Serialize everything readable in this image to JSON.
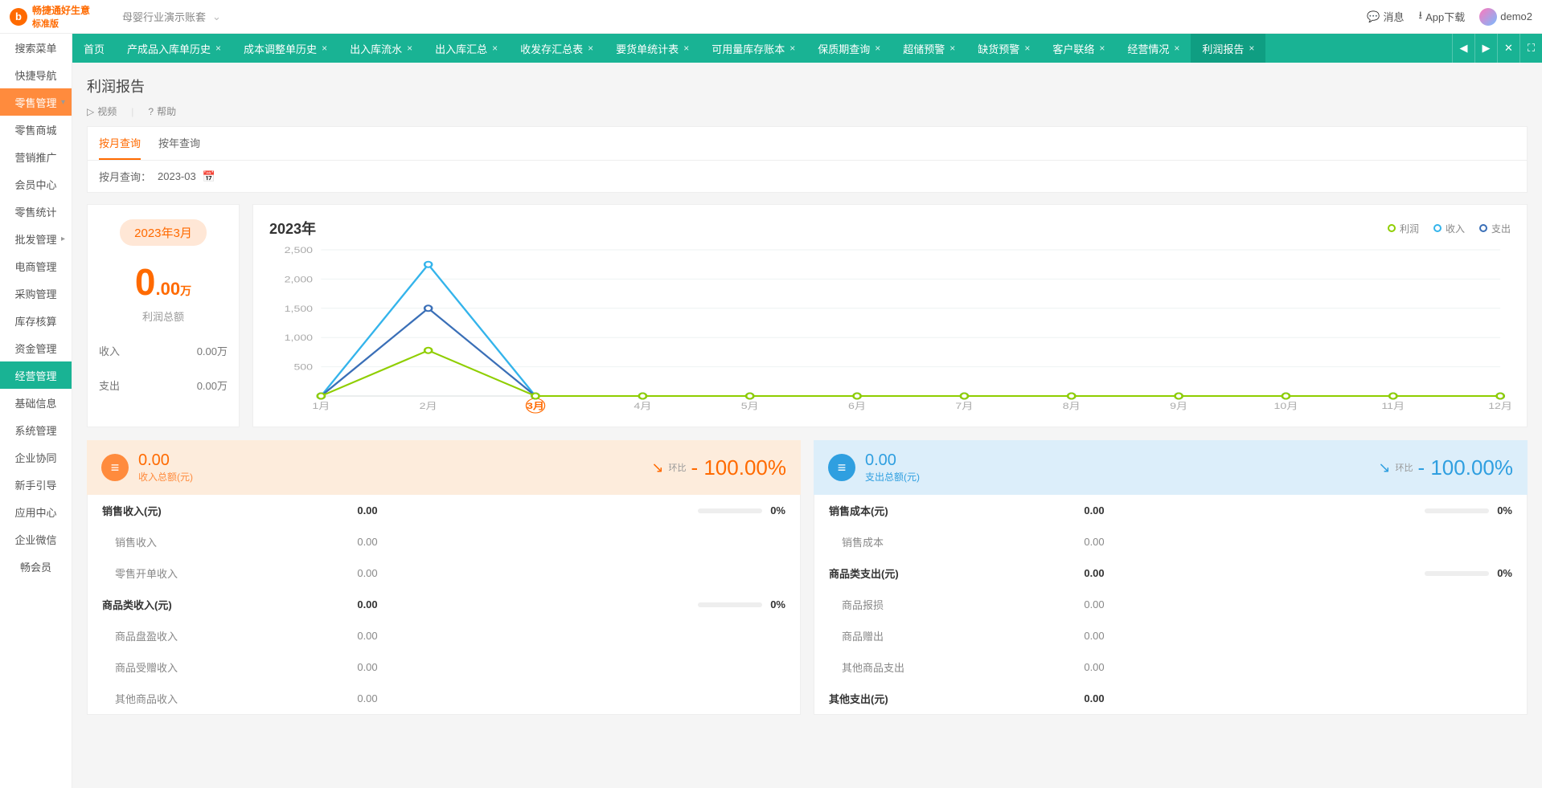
{
  "topbar": {
    "brand": "畅捷通好生意",
    "edition": "标准版",
    "account": "母婴行业演示账套",
    "msg": "消息",
    "app": "App下载",
    "user": "demo2"
  },
  "sidebar": [
    {
      "label": "搜索菜单"
    },
    {
      "label": "快捷导航"
    },
    {
      "label": "零售管理",
      "style": "active expand"
    },
    {
      "label": "零售商城"
    },
    {
      "label": "营销推广"
    },
    {
      "label": "会员中心"
    },
    {
      "label": "零售统计"
    },
    {
      "label": "批发管理",
      "style": "collapse"
    },
    {
      "label": "电商管理"
    },
    {
      "label": "采购管理"
    },
    {
      "label": "库存核算"
    },
    {
      "label": "资金管理"
    },
    {
      "label": "经营管理",
      "style": "active-sub"
    },
    {
      "label": "基础信息"
    },
    {
      "label": "系统管理"
    },
    {
      "label": "企业协同"
    },
    {
      "label": "新手引导"
    },
    {
      "label": "应用中心"
    },
    {
      "label": "企业微信"
    },
    {
      "label": "畅会员"
    }
  ],
  "tabs": [
    {
      "label": "首页",
      "close": false
    },
    {
      "label": "产成品入库单历史",
      "close": true
    },
    {
      "label": "成本调整单历史",
      "close": true
    },
    {
      "label": "出入库流水",
      "close": true
    },
    {
      "label": "出入库汇总",
      "close": true
    },
    {
      "label": "收发存汇总表",
      "close": true
    },
    {
      "label": "要货单统计表",
      "close": true
    },
    {
      "label": "可用量库存账本",
      "close": true
    },
    {
      "label": "保质期查询",
      "close": true
    },
    {
      "label": "超储预警",
      "close": true
    },
    {
      "label": "缺货预警",
      "close": true
    },
    {
      "label": "客户联络",
      "close": true
    },
    {
      "label": "经营情况",
      "close": true
    },
    {
      "label": "利润报告",
      "close": true,
      "active": true
    }
  ],
  "page": {
    "title": "利润报告",
    "video": "视频",
    "help": "帮助"
  },
  "subtabs": [
    {
      "label": "按月查询",
      "active": true
    },
    {
      "label": "按年查询"
    }
  ],
  "query": {
    "label": "按月查询：",
    "value": "2023-03"
  },
  "summary": {
    "period": "2023年3月",
    "bigInt": "0",
    "bigDec": ".00",
    "unit": "万",
    "subLabel": "利润总额",
    "rows": [
      {
        "k": "收入",
        "v": "0.00万"
      },
      {
        "k": "支出",
        "v": "0.00万"
      }
    ]
  },
  "chart": {
    "title": "2023年",
    "legend": [
      {
        "name": "利润",
        "color": "#8fce00"
      },
      {
        "name": "收入",
        "color": "#34b4eb"
      },
      {
        "name": "支出",
        "color": "#3a6fb7"
      }
    ],
    "yTicks": [
      "2,500",
      "2,000",
      "1,500",
      "1,000",
      "500"
    ],
    "xLabels": [
      "1月",
      "2月",
      "3月",
      "4月",
      "5月",
      "6月",
      "7月",
      "8月",
      "9月",
      "10月",
      "11月",
      "12月"
    ],
    "highlightX": 2,
    "colors": {
      "grid": "#eef2f2",
      "axis": "#d7dddd",
      "profit": "#8fce00",
      "income": "#34b4eb",
      "expense": "#3a6fb7"
    },
    "series": {
      "income": [
        0,
        2250,
        0,
        0,
        0,
        0,
        0,
        0,
        0,
        0,
        0,
        0
      ],
      "expense": [
        0,
        1500,
        0,
        0,
        0,
        0,
        0,
        0,
        0,
        0,
        0,
        0
      ],
      "profit": [
        0,
        780,
        0,
        0,
        0,
        0,
        0,
        0,
        0,
        0,
        0,
        0
      ]
    },
    "yMax": 2500
  },
  "incomeCard": {
    "headVal": "0.00",
    "headLabel": "收入总额(元)",
    "hb": "环比",
    "pct": "- 100.00%",
    "rows": [
      {
        "label": "销售收入(元)",
        "val": "0.00",
        "pct": "0%",
        "head": true
      },
      {
        "label": "销售收入",
        "val": "0.00",
        "sub": true
      },
      {
        "label": "零售开单收入",
        "val": "0.00",
        "sub": true
      },
      {
        "label": "商品类收入(元)",
        "val": "0.00",
        "pct": "0%",
        "head": true
      },
      {
        "label": "商品盘盈收入",
        "val": "0.00",
        "sub": true
      },
      {
        "label": "商品受赠收入",
        "val": "0.00",
        "sub": true
      },
      {
        "label": "其他商品收入",
        "val": "0.00",
        "sub": true
      }
    ]
  },
  "expenseCard": {
    "headVal": "0.00",
    "headLabel": "支出总额(元)",
    "hb": "环比",
    "pct": "- 100.00%",
    "rows": [
      {
        "label": "销售成本(元)",
        "val": "0.00",
        "pct": "0%",
        "head": true
      },
      {
        "label": "销售成本",
        "val": "0.00",
        "sub": true
      },
      {
        "label": "商品类支出(元)",
        "val": "0.00",
        "pct": "0%",
        "head": true
      },
      {
        "label": "商品报损",
        "val": "0.00",
        "sub": true
      },
      {
        "label": "商品赠出",
        "val": "0.00",
        "sub": true
      },
      {
        "label": "其他商品支出",
        "val": "0.00",
        "sub": true
      },
      {
        "label": "其他支出(元)",
        "val": "0.00",
        "head": true
      }
    ]
  }
}
